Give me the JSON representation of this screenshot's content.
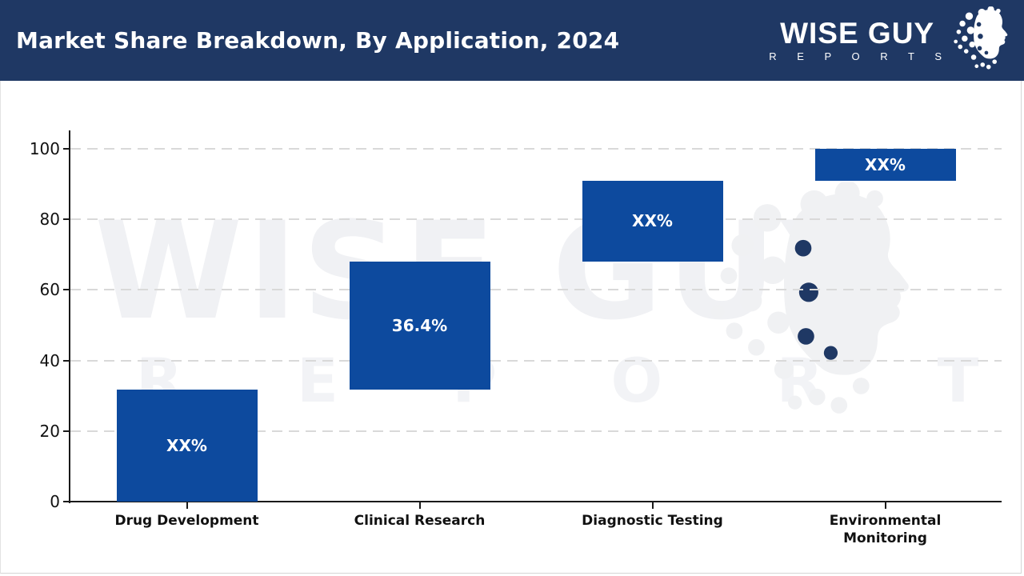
{
  "header": {
    "title": "Market Share Breakdown, By Application, 2024"
  },
  "logo": {
    "name": "WISE GUY",
    "subtitle": "R E P O R T S"
  },
  "watermark": {
    "line1": "WISE GUY",
    "line2": "R E P O R T S"
  },
  "chart_data": {
    "type": "bar",
    "subtype": "waterfall",
    "title": "Market Share Breakdown, By Application, 2024",
    "categories": [
      "Drug Development",
      "Clinical Research",
      "Diagnostic Testing",
      "Environmental Monitoring"
    ],
    "segments": [
      {
        "category": "Drug Development",
        "start": 0,
        "end": 31.7,
        "label": "XX%"
      },
      {
        "category": "Clinical Research",
        "start": 31.7,
        "end": 68.1,
        "label": "36.4%"
      },
      {
        "category": "Diagnostic Testing",
        "start": 68.1,
        "end": 90.9,
        "label": "XX%"
      },
      {
        "category": "Environmental Monitoring",
        "start": 90.9,
        "end": 100,
        "label": "XX%"
      }
    ],
    "yticks": [
      0,
      20,
      40,
      60,
      80,
      100
    ],
    "ylim": [
      0,
      105
    ],
    "xlabel": "",
    "ylabel": "",
    "grid": "horizontal-dashed",
    "legend": "none",
    "bar_color": "#0d4a9e",
    "bar_label_color": "#ffffff",
    "axis_color": "#1a1a1a",
    "grid_color": "#d9d9d9",
    "header_bg_color": "#1f3864",
    "watermark_color": "#f0f1f4"
  }
}
